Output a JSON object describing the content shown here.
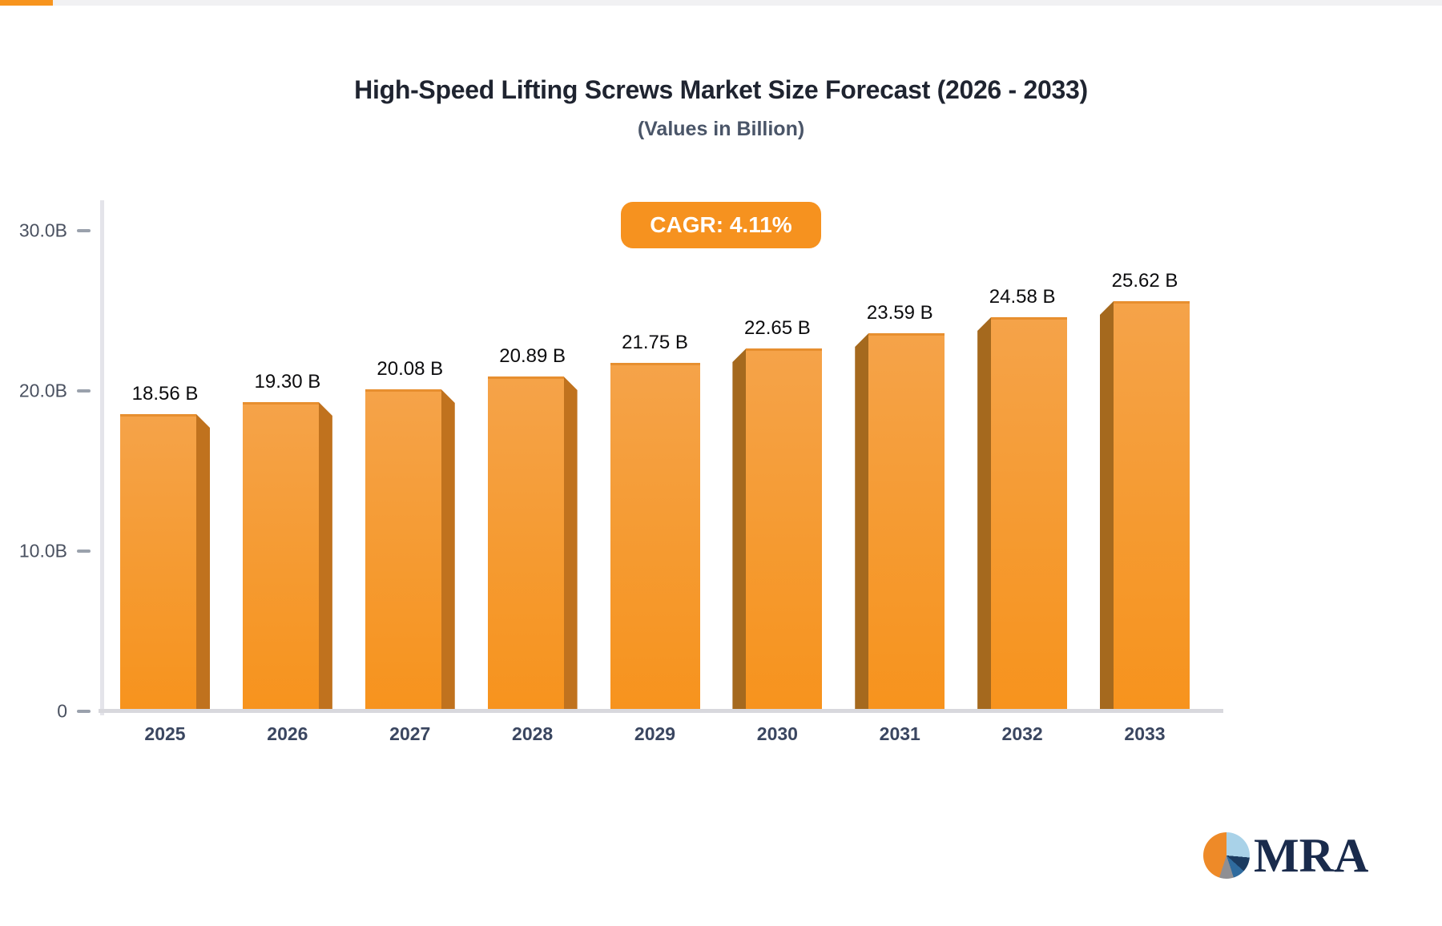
{
  "chart_data": {
    "type": "bar",
    "title": "High-Speed Lifting Screws Market Size Forecast (2026 - 2033)",
    "subtitle": "(Values in Billion)",
    "badge": "CAGR: 4.11%",
    "categories": [
      "2025",
      "2026",
      "2027",
      "2028",
      "2029",
      "2030",
      "2031",
      "2032",
      "2033"
    ],
    "values": [
      18.56,
      19.3,
      20.08,
      20.89,
      21.75,
      22.65,
      23.59,
      24.58,
      25.62
    ],
    "value_labels": [
      "18.56 B",
      "19.30 B",
      "20.08 B",
      "20.89 B",
      "21.75 B",
      "22.65 B",
      "23.59 B",
      "24.58 B",
      "25.62 B"
    ],
    "xlabel": "",
    "ylabel": "",
    "ylim": [
      0,
      30
    ],
    "y_ticks": [
      {
        "label": "0",
        "value": 0
      },
      {
        "label": "10.0B",
        "value": 10
      },
      {
        "label": "20.0B",
        "value": 20
      },
      {
        "label": "30.0B",
        "value": 30
      }
    ],
    "grid": false,
    "legend": false,
    "bar_color": "#F7941E",
    "bar_side_color_right": "#C0721E",
    "bar_side_color_left": "#A5691E",
    "style": "3d-perspective-center"
  },
  "badge_color": "#F6921F",
  "logo": {
    "text": "MRA"
  }
}
